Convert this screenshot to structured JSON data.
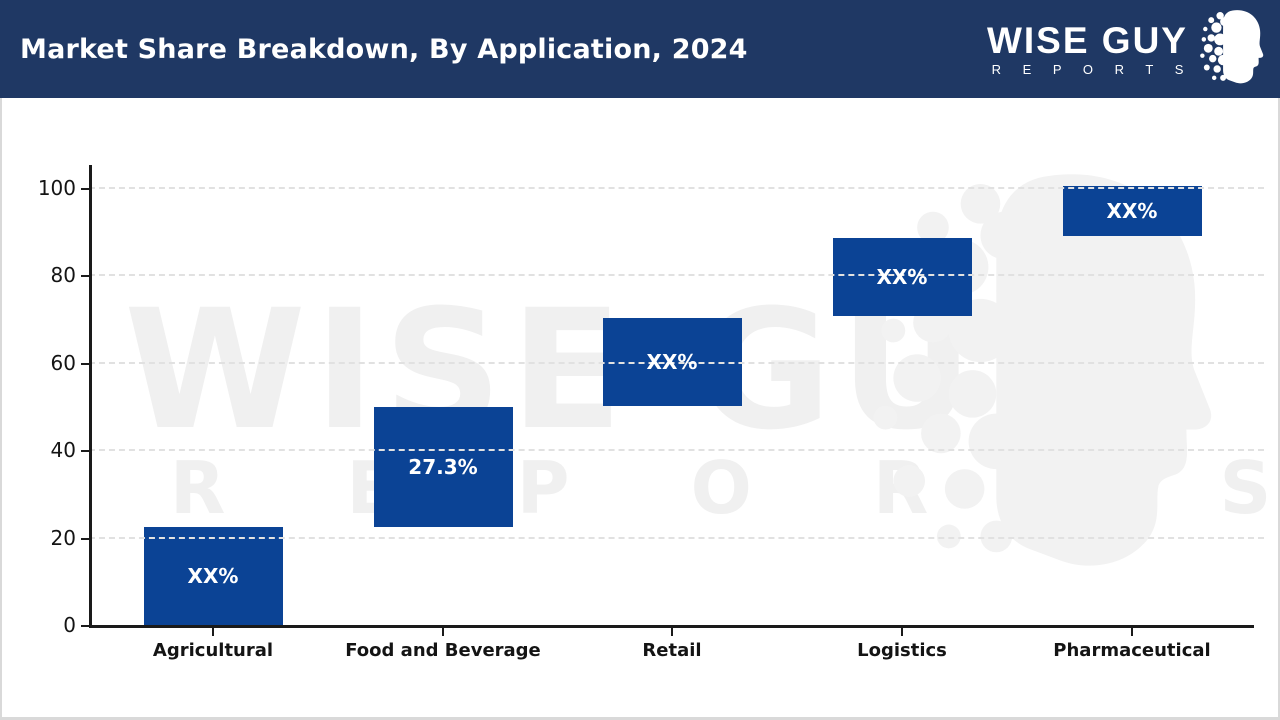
{
  "header": {
    "title": "Market Share Breakdown, By Application, 2024",
    "logo": {
      "name": "WISE GUY",
      "sub": "R E P O R T S"
    }
  },
  "watermark": {
    "name": "WISE GUY",
    "sub": "R E P O R T S"
  },
  "chart_data": {
    "type": "bar",
    "subtype": "waterfall",
    "title": "Market Share Breakdown, By Application, 2024",
    "categories": [
      "Agricultural",
      "Food and Beverage",
      "Retail",
      "Logistics",
      "Pharmaceutical"
    ],
    "segments": [
      {
        "category": "Agricultural",
        "start": 0,
        "end": 22.5,
        "label": "XX%"
      },
      {
        "category": "Food and Beverage",
        "start": 22.5,
        "end": 49.8,
        "label": "27.3%"
      },
      {
        "category": "Retail",
        "start": 50.0,
        "end": 70.2,
        "label": "XX%"
      },
      {
        "category": "Logistics",
        "start": 70.7,
        "end": 88.5,
        "label": "XX%"
      },
      {
        "category": "Pharmaceutical",
        "start": 88.9,
        "end": 100.4,
        "label": "XX%"
      }
    ],
    "yticks": [
      0,
      20,
      40,
      60,
      80,
      100
    ],
    "ylim": [
      0,
      105
    ],
    "xlabel": "",
    "ylabel": "",
    "grid": "horizontal-dashed-over-bars",
    "legend": "none",
    "bar_color": "#0b4395",
    "bar_label_color": "#ffffff"
  },
  "colors": {
    "header_bg": "#1f3864",
    "axis": "#1a1a1a",
    "grid": "#e1e1e1",
    "watermark": "#f0f0f0",
    "frame": "#d9d9d9"
  }
}
